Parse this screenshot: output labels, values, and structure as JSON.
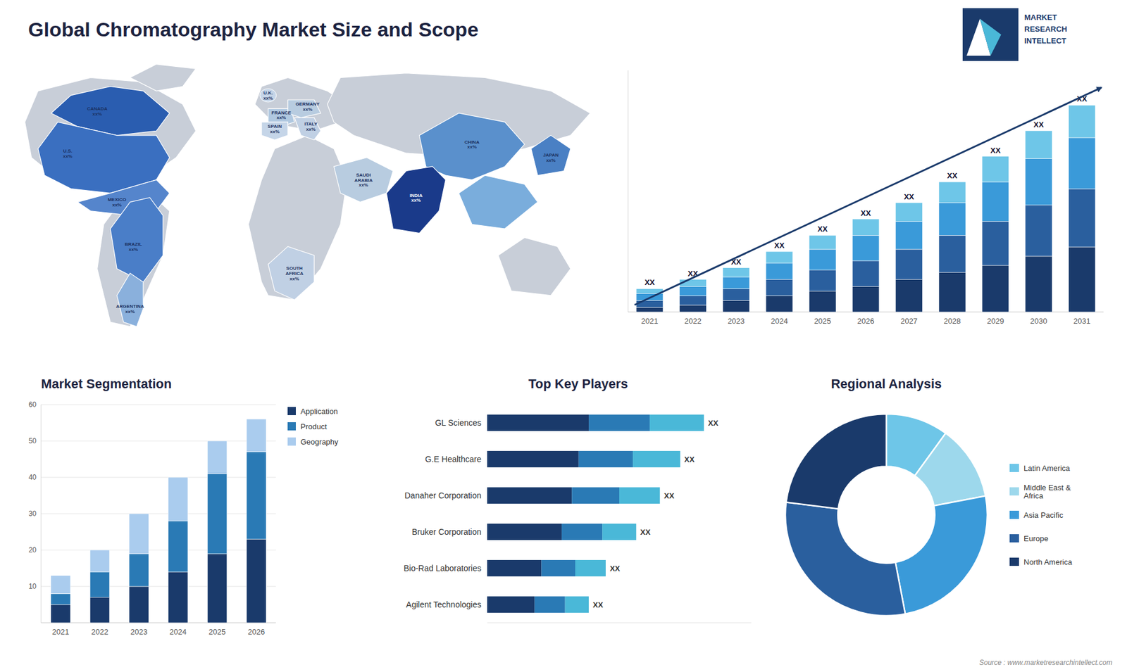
{
  "title": "Global Chromatography Market Size and Scope",
  "annotations": [
    "Source : www.marketresearchintellect.com",
    "MARKET",
    "RESEARCH",
    "INTELLECT"
  ],
  "chart_data": [
    {
      "type": "map",
      "annotations": [
        "CANADA\nxx%",
        "U.S.\nxx%",
        "MEXICO\nxx%",
        "BRAZIL\nxx%",
        "ARGENTINA\nxx%",
        "U.K.\nxx%",
        "FRANCE\nxx%",
        "SPAIN\nxx%",
        "GERMANY\nxx%",
        "ITALY\nxx%",
        "SAUDI\nARABIA\nxx%",
        "SOUTH\nAFRICA\nxx%",
        "CHINA\nxx%",
        "INDIA\nxx%",
        "JAPAN\nxx%"
      ]
    },
    {
      "type": "bar",
      "stacked": true,
      "categories": [
        "2021",
        "2022",
        "2023",
        "2024",
        "2025",
        "2026",
        "2027",
        "2028",
        "2029",
        "2030",
        "2031"
      ],
      "series": [
        {
          "color": "#1a3a6b",
          "values": [
            2,
            3,
            5,
            7,
            9,
            11,
            14,
            17,
            20,
            24,
            28
          ]
        },
        {
          "color": "#2a5f9e",
          "values": [
            3,
            4,
            5,
            7,
            9,
            11,
            13,
            16,
            19,
            22,
            25
          ]
        },
        {
          "color": "#3a9ad9",
          "values": [
            3,
            4,
            5,
            7,
            9,
            11,
            12,
            14,
            17,
            20,
            22
          ]
        },
        {
          "color": "#6ec6e8",
          "values": [
            2,
            3,
            4,
            5,
            6,
            7,
            8,
            9,
            11,
            12,
            14
          ]
        }
      ],
      "ylim": [
        0,
        104
      ],
      "tick_labels": "x",
      "annotations": [
        "XX",
        "XX",
        "XX",
        "XX",
        "XX",
        "XX",
        "XX",
        "XX",
        "XX",
        "XX",
        "XX"
      ]
    },
    {
      "type": "bar",
      "stacked": true,
      "title": "Market Segmentation",
      "categories": [
        "2021",
        "2022",
        "2023",
        "2024",
        "2025",
        "2026"
      ],
      "series": [
        {
          "name": "Application",
          "color": "#1a3a6b",
          "values": [
            5,
            7,
            10,
            14,
            19,
            23
          ]
        },
        {
          "name": "Product",
          "color": "#2a7ab5",
          "values": [
            3,
            7,
            9,
            14,
            22,
            24
          ]
        },
        {
          "name": "Geography",
          "color": "#aaccee",
          "values": [
            5,
            6,
            11,
            12,
            9,
            9
          ]
        }
      ],
      "ylim": [
        0,
        60
      ],
      "yticks": [
        10,
        20,
        30,
        40,
        50,
        60
      ],
      "grid": true,
      "legend": "right"
    },
    {
      "type": "bar",
      "stacked": true,
      "orientation": "horizontal",
      "title": "Top Key Players",
      "categories": [
        "GL Sciences",
        "G.E Healthcare",
        "Danaher Corporation",
        "Bruker Corporation",
        "Bio-Rad Laboratories",
        "Agilent Technologies"
      ],
      "series": [
        {
          "color": "#1a3a6b",
          "values": [
            0.3,
            0.27,
            0.25,
            0.22,
            0.16,
            0.14
          ]
        },
        {
          "color": "#2a7ab5",
          "values": [
            0.18,
            0.16,
            0.14,
            0.12,
            0.1,
            0.09
          ]
        },
        {
          "color": "#4ab8d8",
          "values": [
            0.16,
            0.14,
            0.12,
            0.1,
            0.09,
            0.07
          ]
        }
      ],
      "xlim": [
        0,
        0.78
      ],
      "tick_labels": "y",
      "annotations": [
        "XX",
        "XX",
        "XX",
        "XX",
        "XX",
        "XX"
      ]
    },
    {
      "type": "pie",
      "title": "Regional Analysis",
      "categories": [
        "Latin America",
        "Middle East &\nAfrica",
        "Asia Pacific",
        "Europe",
        "North America"
      ],
      "values": [
        10,
        12,
        25,
        30,
        23
      ],
      "colors": [
        "#6ec6e8",
        "#9dd8ec",
        "#3a9ad9",
        "#2a5f9e",
        "#1a3a6b"
      ],
      "legend": "right"
    }
  ]
}
